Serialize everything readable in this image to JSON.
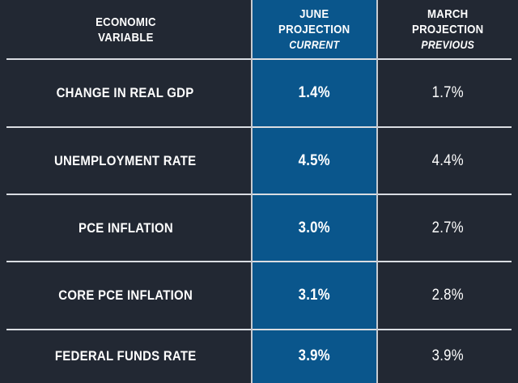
{
  "chart_data": {
    "type": "table",
    "header": {
      "col1": {
        "line1": "ECONOMIC",
        "line2": "VARIABLE"
      },
      "col2": {
        "line1": "JUNE",
        "line2": "PROJECTION",
        "sub": "CURRENT"
      },
      "col3": {
        "line1": "MARCH",
        "line2": "PROJECTION",
        "sub": "PREVIOUS"
      }
    },
    "rows": [
      {
        "variable": "CHANGE IN REAL GDP",
        "june": "1.4%",
        "march": "1.7%"
      },
      {
        "variable": "UNEMPLOYMENT RATE",
        "june": "4.5%",
        "march": "4.4%"
      },
      {
        "variable": "PCE INFLATION",
        "june": "3.0%",
        "march": "2.7%"
      },
      {
        "variable": "CORE PCE INFLATION",
        "june": "3.1%",
        "march": "2.8%"
      },
      {
        "variable": "FEDERAL FUNDS RATE",
        "june": "3.9%",
        "march": "3.9%"
      }
    ]
  },
  "colors": {
    "background": "#222833",
    "highlight": "#0a568c",
    "divider_h": "#dadde2",
    "divider_v": "#c7cbd1",
    "text": "#ffffff"
  }
}
